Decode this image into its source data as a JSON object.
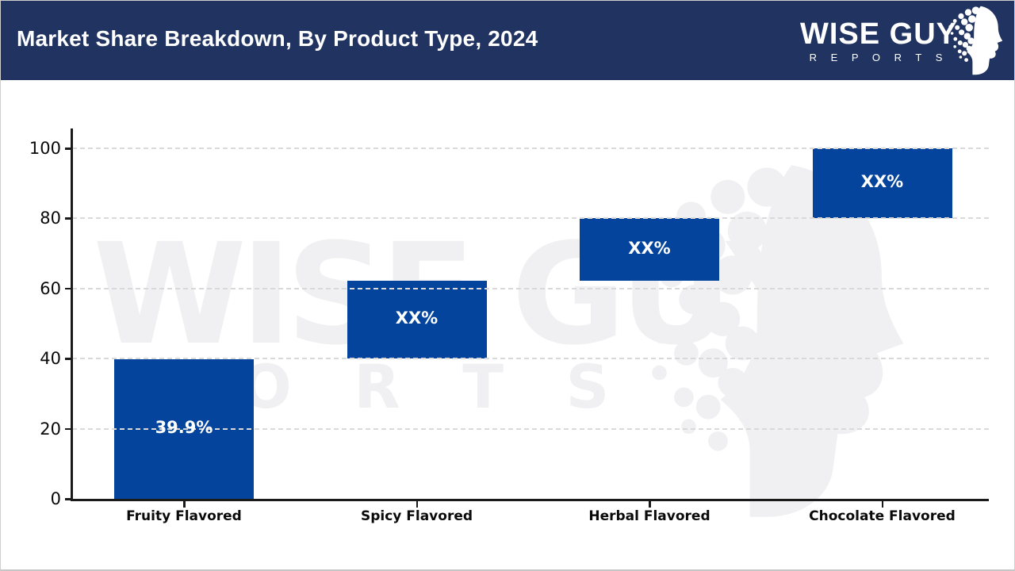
{
  "header": {
    "title": "Market Share Breakdown, By Product Type, 2024",
    "logo_line1": "WISE GUY",
    "logo_line2": "R E P O R T S",
    "bg_color": "#203361"
  },
  "watermark": {
    "line1": "WISE GUY",
    "line2": "P O R T S"
  },
  "chart_data": {
    "type": "bar",
    "variant": "waterfall",
    "title": "Market Share Breakdown, By Product Type, 2024",
    "categories": [
      "Fruity Flavored",
      "Spicy Flavored",
      "Herbal Flavored",
      "Chocolate Flavored"
    ],
    "segments": [
      {
        "category": "Fruity Flavored",
        "start": 0,
        "end": 39.9,
        "label": "39.9%"
      },
      {
        "category": "Spicy Flavored",
        "start": 40,
        "end": 62.3,
        "label": "XX%"
      },
      {
        "category": "Herbal Flavored",
        "start": 62.3,
        "end": 80,
        "label": "XX%"
      },
      {
        "category": "Chocolate Flavored",
        "start": 80,
        "end": 100,
        "label": "XX%"
      }
    ],
    "ylim": [
      0,
      100
    ],
    "yticks": [
      0,
      20,
      40,
      60,
      80,
      100
    ],
    "xlabel": "",
    "ylabel": "",
    "legend": "none",
    "grid": "horizontal-dashed",
    "bar_color": "#04449c",
    "bar_label_color": "#ffffff",
    "axis_color": "#1a1a1a",
    "grid_color": "#d9d9d9"
  }
}
